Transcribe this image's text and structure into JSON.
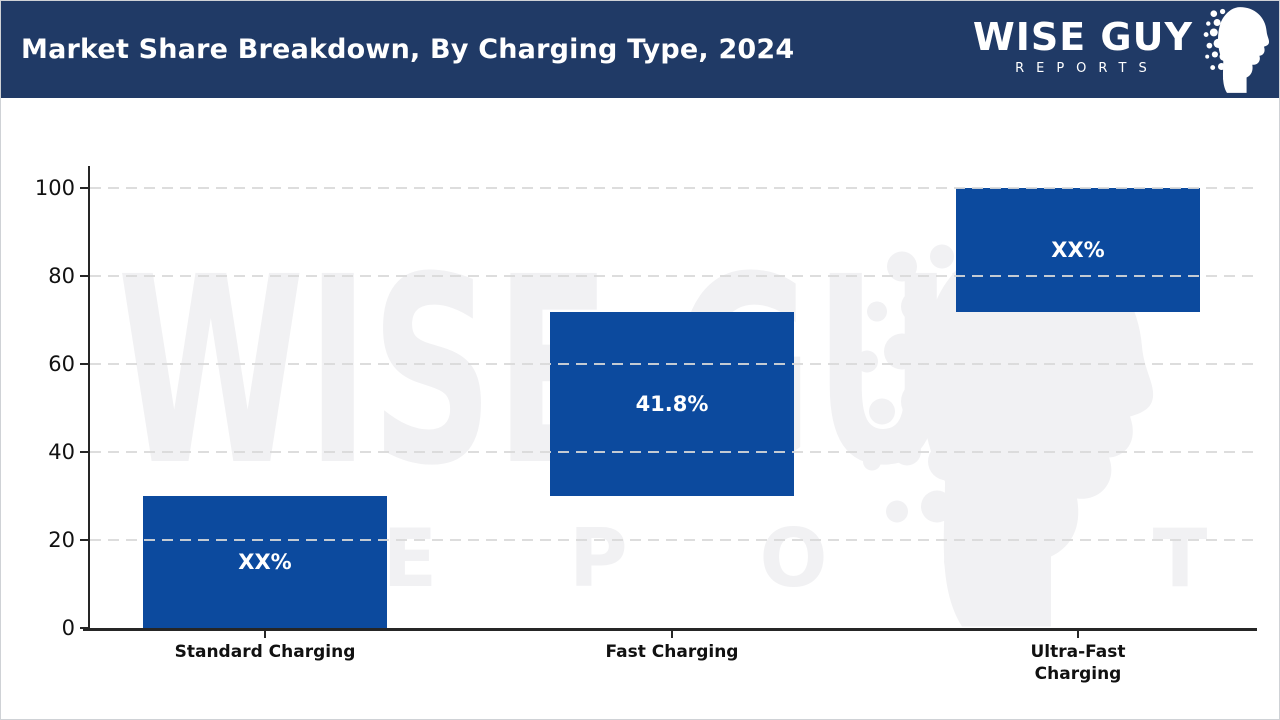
{
  "header": {
    "title": "Market Share Breakdown, By Charging Type, 2024",
    "bg_color": "#203a66",
    "logo": {
      "line1": "WISE GUY",
      "line2": "REPORTS"
    }
  },
  "watermark": {
    "line1": "WISE GUY",
    "line2": "R E P O R T S"
  },
  "chart_data": {
    "type": "bar",
    "subtype": "floating-segment breakdown (waterfall-style market share)",
    "title": "Market Share Breakdown, By Charging Type, 2024",
    "categories": [
      "Standard Charging",
      "Fast Charging",
      "Ultra-Fast\nCharging"
    ],
    "series": [
      {
        "name": "Market share (%)",
        "segments": [
          {
            "category": "Standard Charging",
            "from": 0,
            "to": 30,
            "value": 30,
            "label": "XX%"
          },
          {
            "category": "Fast Charging",
            "from": 30,
            "to": 71.8,
            "value": 41.8,
            "label": "41.8%"
          },
          {
            "category": "Ultra-Fast Charging",
            "from": 71.8,
            "to": 100,
            "value": 28.2,
            "label": "XX%"
          }
        ]
      }
    ],
    "bar_labels": [
      "XX%",
      "41.8%",
      "XX%"
    ],
    "yticks": [
      0,
      20,
      40,
      60,
      80,
      100
    ],
    "ylim": [
      0,
      105
    ],
    "xlabel": "",
    "ylabel": "",
    "grid": "horizontal dashed",
    "legend": "none",
    "colors": {
      "bar": "#0c4a9e",
      "grid": "#d9d9d9",
      "axis": "#262626",
      "bar_label_text": "#ffffff",
      "tick_text": "#111111"
    }
  }
}
